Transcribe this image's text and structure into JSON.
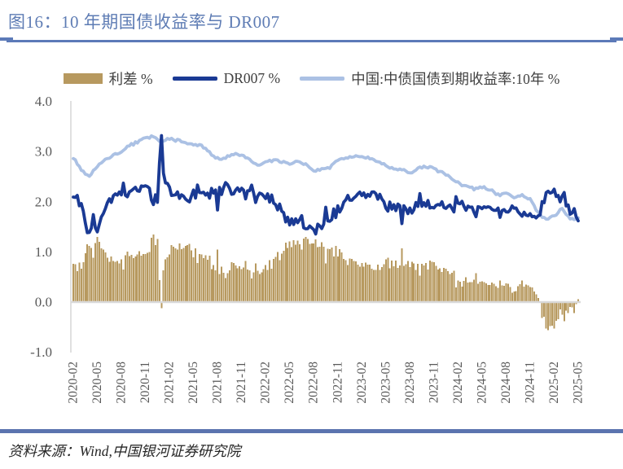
{
  "figure": {
    "title": "图16：10 年期国债收益率与 DR007",
    "source": "资料来源：Wind,中国银河证券研究院"
  },
  "colors": {
    "title_text": "#5E7CB4",
    "title_rule": "#5C7AB8",
    "bottom_bar": "#5B74AF",
    "spread_bar": "#B7995F",
    "dr007_line": "#1A3A94",
    "cgb10y_line": "#ABC1E4",
    "axis_gray": "#D9D9D9",
    "tick_text": "#595959",
    "legend_text": "#404040"
  },
  "legend": [
    {
      "label": "利差 %",
      "swatch": "bar",
      "color_key": "spread_bar"
    },
    {
      "label": "DR007 %",
      "swatch": "line",
      "color_key": "dr007_line"
    },
    {
      "label": "中国:中债国债到期收益率:10年 %",
      "swatch": "line",
      "color_key": "cgb10y_line"
    }
  ],
  "chart_data": {
    "type": "mixed-bar-line",
    "title": "10 年期国债收益率与 DR007",
    "xlabel": "",
    "ylabel": "%",
    "ylim": [
      -1.0,
      4.0
    ],
    "y_ticks": [
      "4.0",
      "3.0",
      "2.0",
      "1.0",
      "0.0",
      "-1.0"
    ],
    "grid": false,
    "legend_position": "top",
    "x_tick_labels": [
      "2020-02",
      "2020-05",
      "2020-08",
      "2020-11",
      "2021-02",
      "2021-05",
      "2021-08",
      "2021-11",
      "2022-02",
      "2022-05",
      "2022-08",
      "2022-11",
      "2023-02",
      "2023-05",
      "2023-08",
      "2023-11",
      "2024-02",
      "2024-05",
      "2024-08",
      "2024-11",
      "2025-02",
      "2025-05"
    ],
    "x_months": [
      "2020-02",
      "2020-03",
      "2020-04",
      "2020-05",
      "2020-06",
      "2020-07",
      "2020-08",
      "2020-09",
      "2020-10",
      "2020-11",
      "2020-12",
      "2021-01",
      "2021-02",
      "2021-03",
      "2021-04",
      "2021-05",
      "2021-06",
      "2021-07",
      "2021-08",
      "2021-09",
      "2021-10",
      "2021-11",
      "2021-12",
      "2022-01",
      "2022-02",
      "2022-03",
      "2022-04",
      "2022-05",
      "2022-06",
      "2022-07",
      "2022-08",
      "2022-09",
      "2022-10",
      "2022-11",
      "2022-12",
      "2023-01",
      "2023-02",
      "2023-03",
      "2023-04",
      "2023-05",
      "2023-06",
      "2023-07",
      "2023-08",
      "2023-09",
      "2023-10",
      "2023-11",
      "2023-12",
      "2024-01",
      "2024-02",
      "2024-03",
      "2024-04",
      "2024-05",
      "2024-06",
      "2024-07",
      "2024-08",
      "2024-09",
      "2024-10",
      "2024-11",
      "2024-12",
      "2025-01",
      "2025-02",
      "2025-03",
      "2025-04",
      "2025-05"
    ],
    "series": [
      {
        "name": "利差 %",
        "type": "bar",
        "values": [
          0.68,
          0.77,
          1.17,
          1.25,
          0.91,
          0.77,
          0.8,
          0.9,
          0.94,
          0.96,
          1.25,
          0.73,
          1.01,
          1.1,
          1.13,
          0.97,
          0.84,
          0.8,
          0.71,
          0.6,
          0.76,
          0.74,
          0.56,
          0.59,
          0.72,
          0.72,
          1.0,
          1.18,
          1.12,
          1.19,
          1.24,
          1.08,
          0.96,
          0.97,
          0.81,
          0.87,
          0.7,
          0.77,
          0.68,
          0.84,
          0.74,
          0.84,
          0.76,
          0.7,
          0.75,
          0.7,
          0.74,
          0.62,
          0.46,
          0.42,
          0.42,
          0.44,
          0.32,
          0.3,
          0.36,
          0.22,
          0.38,
          0.28,
          0.06,
          -0.46,
          -0.53,
          -0.16,
          -0.16,
          0.06
        ]
      },
      {
        "name": "DR007 %",
        "type": "line",
        "values": [
          2.2,
          1.85,
          1.35,
          1.45,
          1.95,
          2.15,
          2.2,
          2.22,
          2.25,
          2.32,
          2.05,
          2.45,
          2.25,
          2.12,
          2.05,
          2.15,
          2.28,
          2.18,
          2.15,
          2.28,
          2.2,
          2.18,
          2.28,
          2.15,
          2.08,
          2.1,
          1.8,
          1.58,
          1.68,
          1.55,
          1.38,
          1.58,
          1.72,
          1.85,
          2.05,
          2.05,
          2.2,
          2.1,
          2.12,
          1.88,
          1.92,
          1.8,
          1.82,
          1.96,
          1.95,
          1.96,
          1.84,
          1.86,
          1.92,
          1.88,
          1.84,
          1.86,
          1.92,
          1.84,
          1.8,
          1.86,
          1.74,
          1.76,
          1.72,
          2.1,
          2.25,
          2.02,
          1.8,
          1.62
        ]
      },
      {
        "name": "中国:中债国债到期收益率:10年 %",
        "type": "line",
        "values": [
          2.88,
          2.62,
          2.52,
          2.7,
          2.86,
          2.92,
          3.0,
          3.12,
          3.19,
          3.28,
          3.3,
          3.18,
          3.26,
          3.22,
          3.18,
          3.12,
          3.12,
          2.98,
          2.86,
          2.88,
          2.96,
          2.92,
          2.84,
          2.74,
          2.8,
          2.82,
          2.8,
          2.76,
          2.8,
          2.74,
          2.62,
          2.66,
          2.68,
          2.82,
          2.86,
          2.92,
          2.9,
          2.87,
          2.8,
          2.72,
          2.66,
          2.64,
          2.58,
          2.66,
          2.7,
          2.66,
          2.58,
          2.48,
          2.38,
          2.3,
          2.26,
          2.3,
          2.24,
          2.14,
          2.16,
          2.08,
          2.12,
          2.04,
          1.78,
          1.64,
          1.72,
          1.86,
          1.64,
          1.68
        ]
      }
    ],
    "dr007_spikes": [
      {
        "month": "2021-01",
        "value": 3.32
      }
    ]
  }
}
